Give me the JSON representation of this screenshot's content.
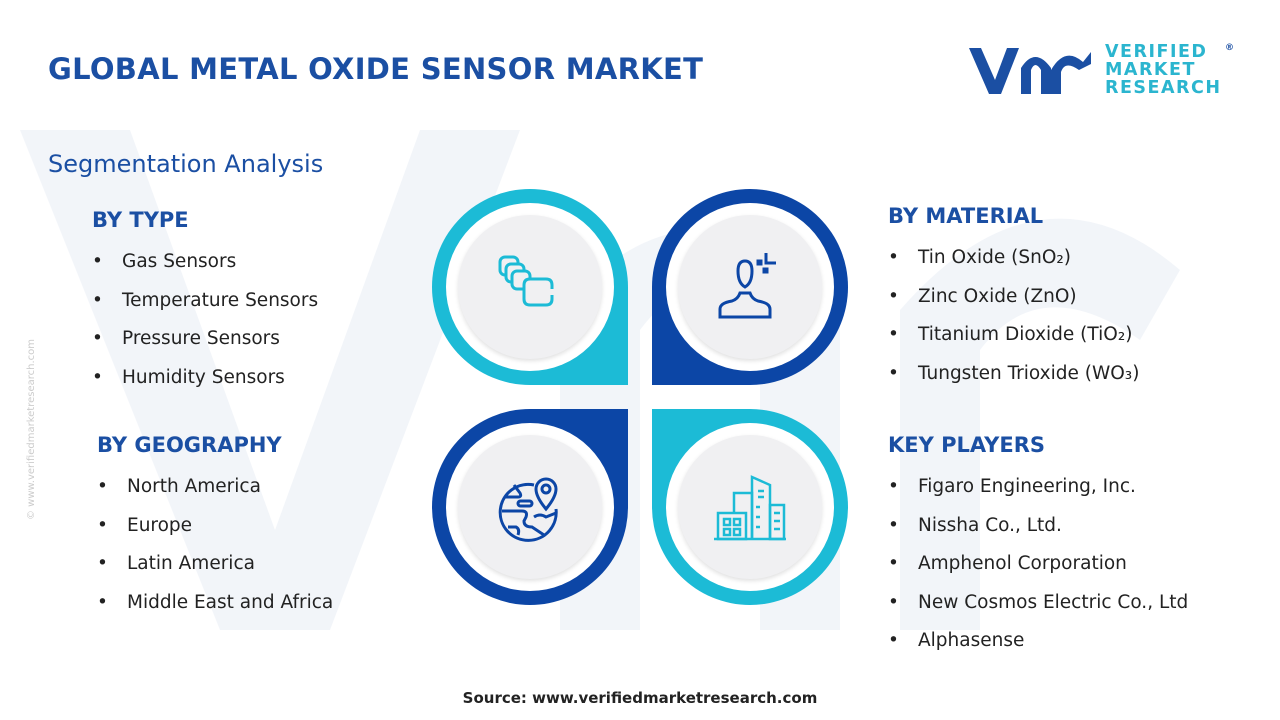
{
  "title": "GLOBAL METAL OXIDE SENSOR MARKET",
  "logo": {
    "line1": "VERIFIED",
    "line2": "MARKET",
    "line3": "RESEARCH",
    "reg": "®"
  },
  "subtitle": "Segmentation Analysis",
  "by_type": {
    "heading": "BY TYPE",
    "items": [
      "Gas Sensors",
      "Temperature Sensors",
      "Pressure Sensors",
      "Humidity Sensors"
    ]
  },
  "by_geography": {
    "heading": "BY GEOGRAPHY",
    "items": [
      "North America",
      "Europe",
      "Latin America",
      "Middle East and Africa"
    ]
  },
  "by_material": {
    "heading": "BY MATERIAL",
    "items": [
      "Tin Oxide (SnO₂)",
      "Zinc Oxide (ZnO)",
      "Titanium Dioxide (TiO₂)",
      "Tungsten Trioxide (WO₃)"
    ]
  },
  "key_players": {
    "heading": "KEY PLAYERS",
    "items": [
      "Figaro Engineering, Inc.",
      "Nissha Co., Ltd.",
      "Amphenol Corporation",
      "New Cosmos Electric Co., Ltd",
      "Alphasense"
    ]
  },
  "watermark_side": "© www.verifiedmarketresearch.com",
  "source": "Source: www.verifiedmarketresearch.com",
  "colors": {
    "primary": "#1b4fa3",
    "cyan": "#1cbbd6",
    "dark_blue": "#0c46a6"
  },
  "icons": [
    "stacked-cards-icon",
    "person-icon",
    "globe-pin-icon",
    "buildings-icon"
  ]
}
